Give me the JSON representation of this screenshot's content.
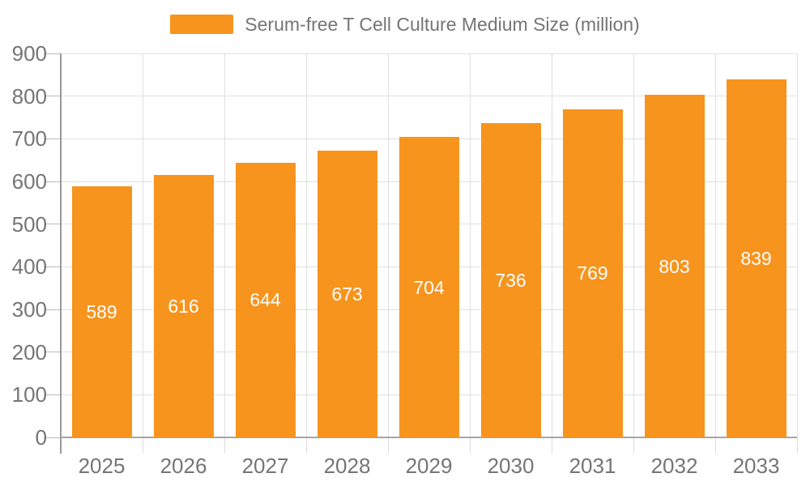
{
  "chart_data": {
    "type": "bar",
    "title": "Serum-free T Cell Culture Medium Size (million)",
    "categories": [
      "2025",
      "2026",
      "2027",
      "2028",
      "2029",
      "2030",
      "2031",
      "2032",
      "2033"
    ],
    "values": [
      589,
      616,
      644,
      673,
      704,
      736,
      769,
      803,
      839
    ],
    "xlabel": "",
    "ylabel": "",
    "ylim": [
      0,
      900
    ],
    "y_tick_interval": 100,
    "y_tick_labels": [
      "0",
      "100",
      "200",
      "300",
      "400",
      "500",
      "600",
      "700",
      "800",
      "900"
    ],
    "grid": true,
    "legend_position": "top",
    "value_labels_position": "inside-middle",
    "colors": {
      "bar": "#f7941e",
      "value_label": "#ffffff",
      "axis_label": "#757575",
      "legend_text": "#757575",
      "grid_line": "#e0e0e0",
      "axis_line": "#999999",
      "background": "#ffffff"
    }
  }
}
